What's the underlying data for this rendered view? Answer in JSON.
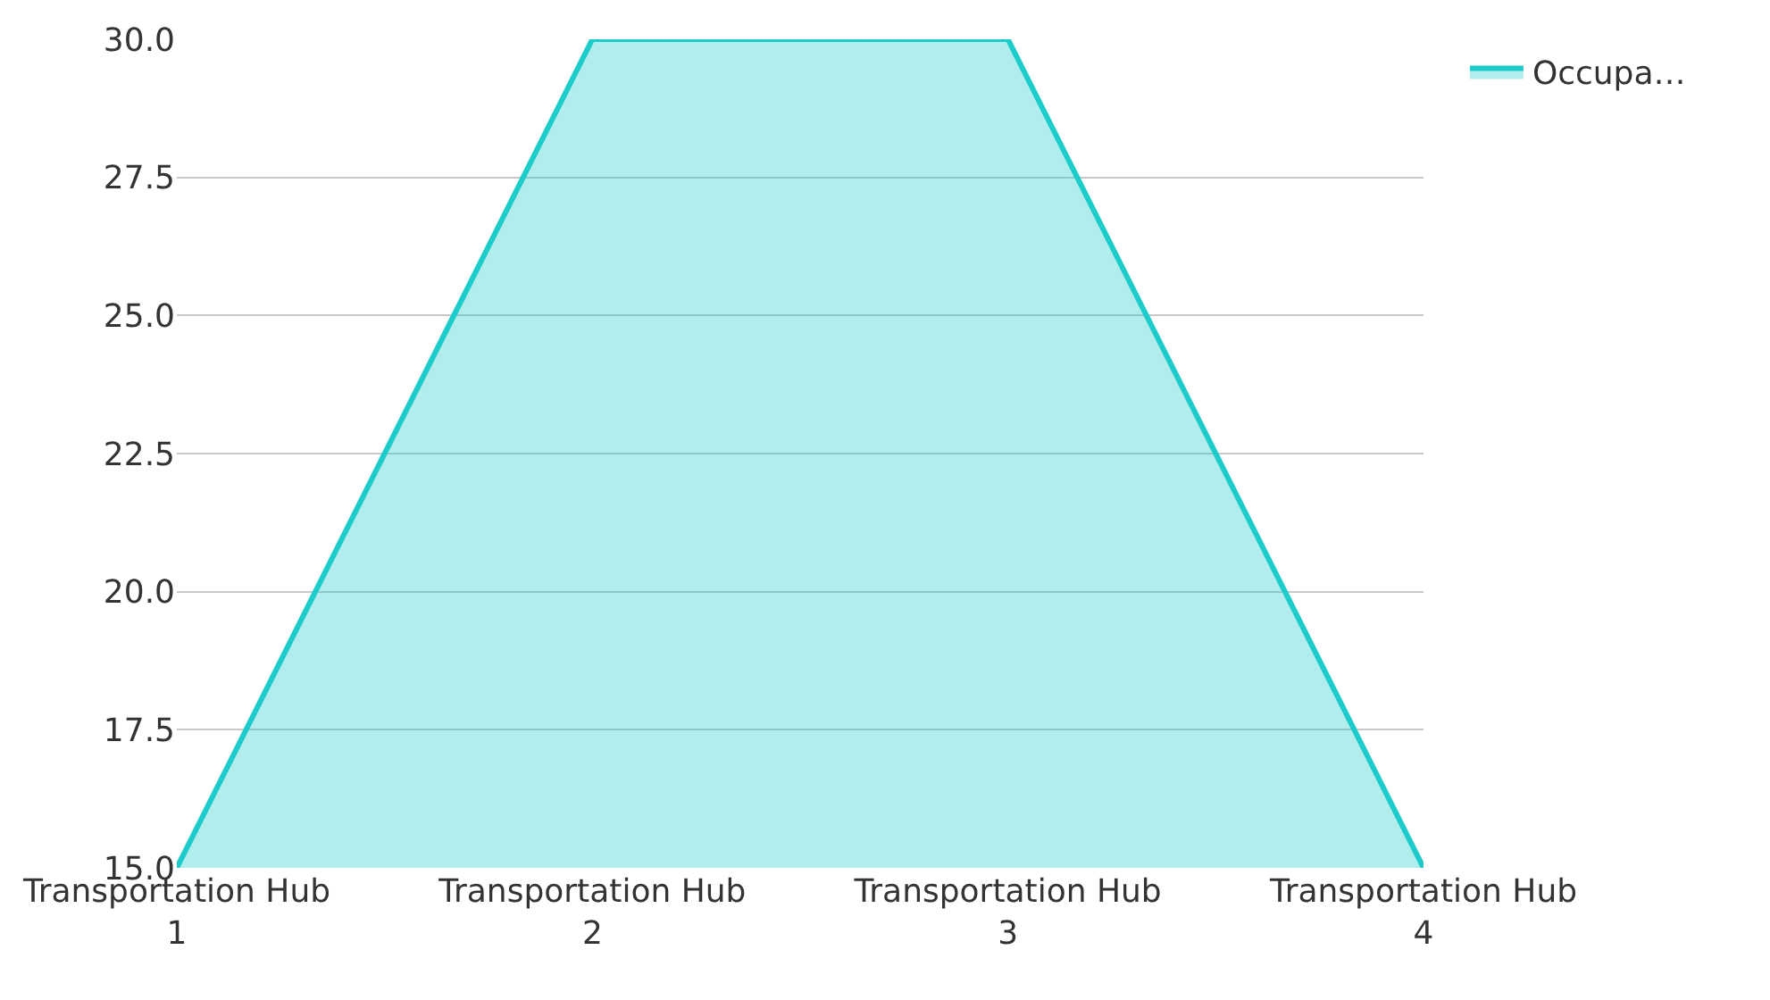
{
  "chart_data": {
    "type": "area",
    "categories": [
      "Transportation Hub 1",
      "Transportation Hub 2",
      "Transportation Hub 3",
      "Transportation Hub 4"
    ],
    "series": [
      {
        "name": "Occupa…",
        "color": "#1ecbcb",
        "values": [
          15,
          30,
          30,
          15
        ]
      }
    ],
    "ylim": [
      15,
      30
    ],
    "yticks": [
      {
        "value": 15,
        "label": "15.0"
      },
      {
        "value": 17.5,
        "label": "17.5"
      },
      {
        "value": 20,
        "label": "20.0"
      },
      {
        "value": 22.5,
        "label": "22.5"
      },
      {
        "value": 25,
        "label": "25.0"
      },
      {
        "value": 27.5,
        "label": "27.5"
      },
      {
        "value": 30,
        "label": "30.0"
      }
    ],
    "grid": "y",
    "legend": "top right"
  }
}
